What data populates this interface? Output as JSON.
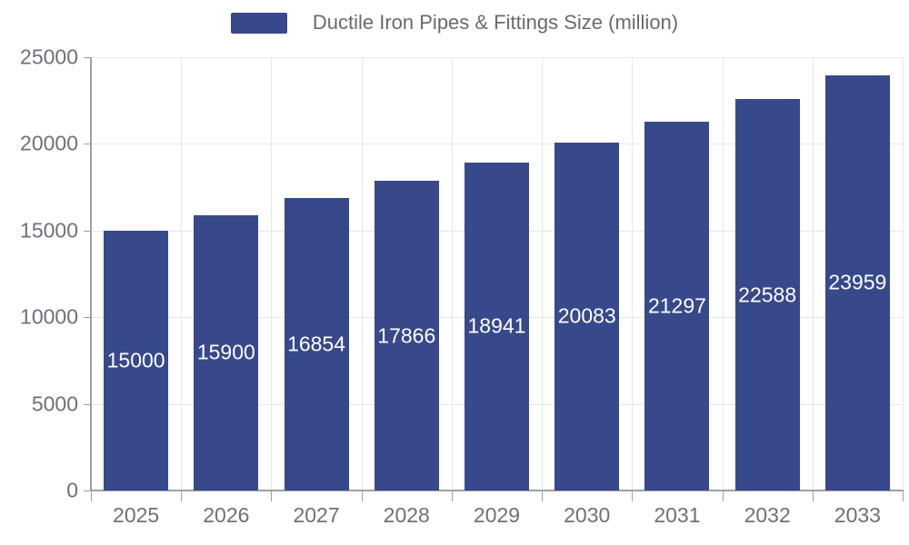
{
  "chart_data": {
    "type": "bar",
    "title": "",
    "legend": "Ductile Iron Pipes & Fittings Size (million)",
    "legend_position": "top-center",
    "categories": [
      "2025",
      "2026",
      "2027",
      "2028",
      "2029",
      "2030",
      "2031",
      "2032",
      "2033"
    ],
    "series": [
      {
        "name": "Ductile Iron Pipes & Fittings Size (million)",
        "values": [
          15000,
          15900,
          16854,
          17866,
          18941,
          20083,
          21297,
          22588,
          23959
        ]
      }
    ],
    "value_labels_shown": true,
    "xlabel": "",
    "ylabel": "",
    "ylim": [
      0,
      25000
    ],
    "yticks": [
      0,
      5000,
      10000,
      15000,
      20000,
      25000
    ],
    "grid": true,
    "colors": {
      "bar": "#37498b",
      "value_label": "#ffffff",
      "gridline": "#e4e7ed",
      "axis_line": "#9ca0a6",
      "axis_text": "#6e7079",
      "legend_text": "#666b72",
      "background": "#ffffff"
    }
  }
}
